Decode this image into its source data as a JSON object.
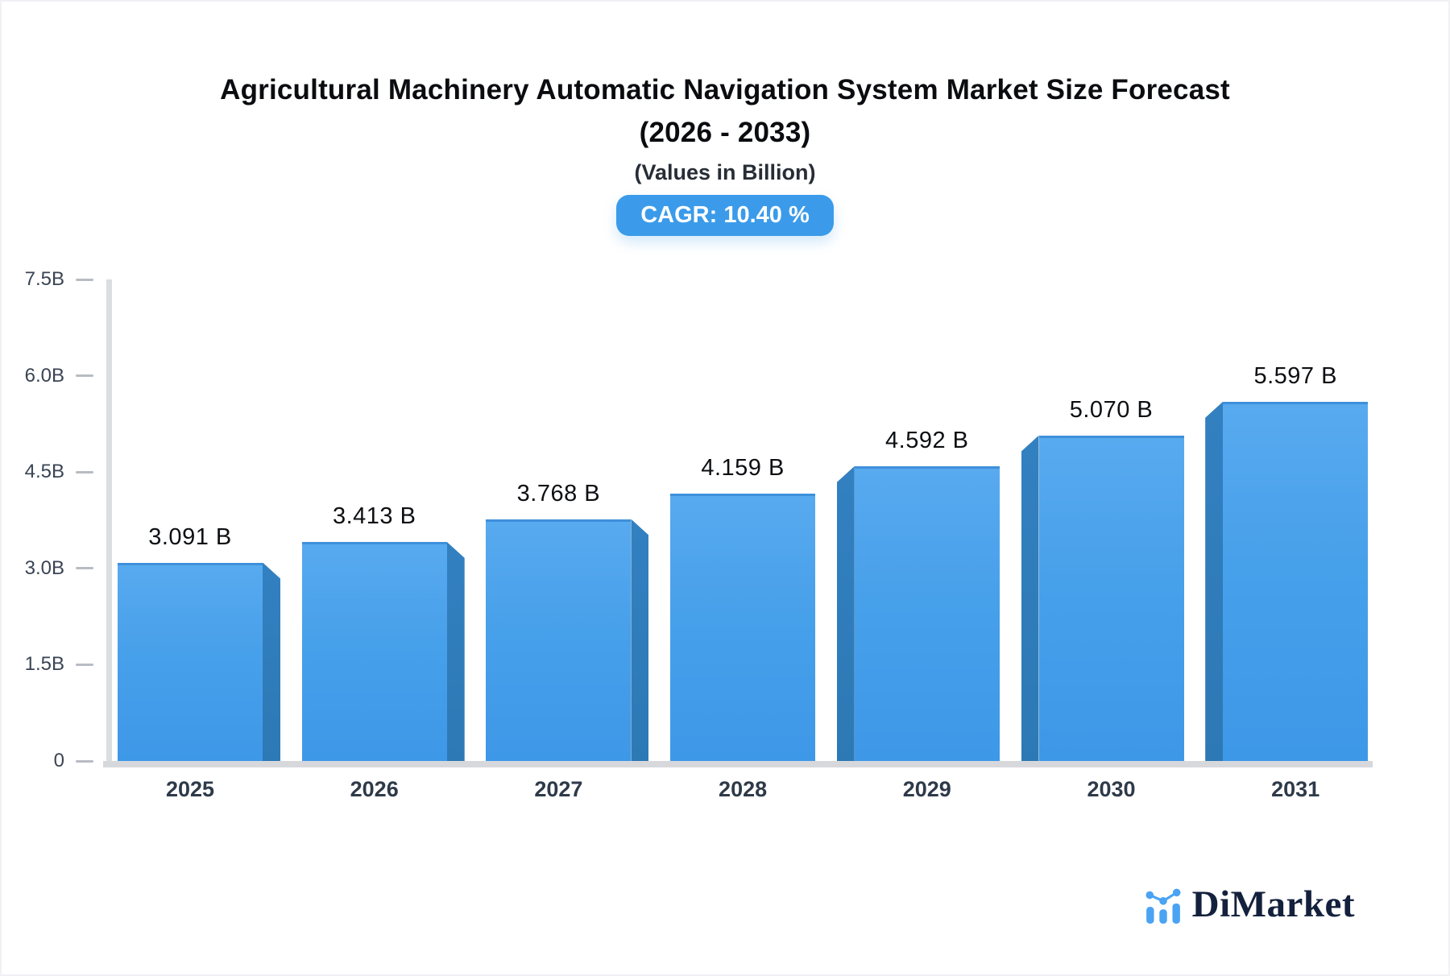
{
  "header": {
    "title": "Agricultural Machinery Automatic Navigation System Market Size Forecast (2026 - 2033)",
    "subtitle": "(Values in Billion)",
    "cagr_badge": "CAGR: 10.40 %"
  },
  "chart_data": {
    "type": "bar",
    "title": "Agricultural Machinery Automatic Navigation System Market Size Forecast (2026 - 2033)",
    "subtitle": "(Values in Billion)",
    "cagr_percent": 10.4,
    "categories": [
      "2025",
      "2026",
      "2027",
      "2028",
      "2029",
      "2030",
      "2031"
    ],
    "values": [
      3.091,
      3.413,
      3.768,
      4.159,
      4.592,
      5.07,
      5.597
    ],
    "value_labels": [
      "3.091 B",
      "3.413 B",
      "3.768 B",
      "4.159 B",
      "4.592 B",
      "5.070 B",
      "5.597 B"
    ],
    "unit": "Billion",
    "ylim": [
      0,
      7.5
    ],
    "yticks": [
      {
        "label": "0",
        "value": 0
      },
      {
        "label": "1.5B",
        "value": 1.5
      },
      {
        "label": "3.0B",
        "value": 3.0
      },
      {
        "label": "4.5B",
        "value": 4.5
      },
      {
        "label": "6.0B",
        "value": 6.0
      },
      {
        "label": "7.5B",
        "value": 7.5
      }
    ],
    "grid": false,
    "legend": "none",
    "style": "3d-bars",
    "bar_face_color": "#47a0ea",
    "bar_side_color": "#2f7cba",
    "axis_color": "#d7d8dc"
  },
  "branding": {
    "logo_text": "DiMarket",
    "logo_icon": "bar-line-chart-icon",
    "logo_icon_color": "#4aa3f3",
    "logo_text_color": "#14213d"
  },
  "colors": {
    "badge_bg": "#3b9bea",
    "badge_text": "#ffffff",
    "title_text": "#0a0c10",
    "background": "#ffffff"
  }
}
